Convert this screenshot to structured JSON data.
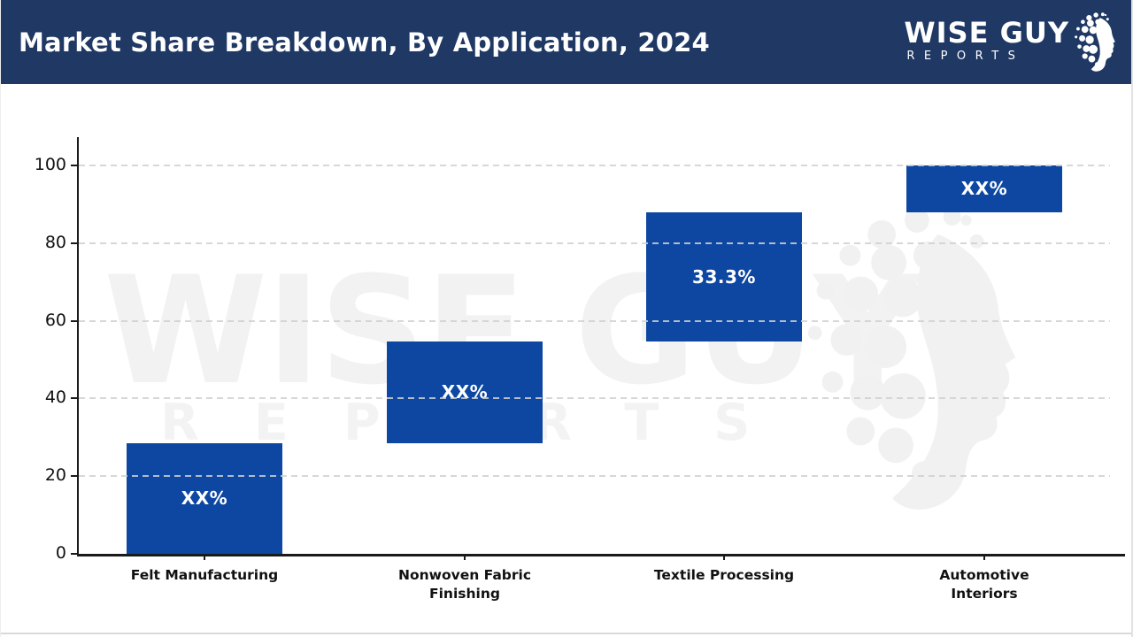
{
  "header": {
    "title": "Market Share Breakdown, By Application, 2024",
    "bg": "#1f3864",
    "logo": {
      "line1": "WISE GUY",
      "line2": "REPORTS"
    }
  },
  "watermark": {
    "line1": "WISE GUY",
    "line2": "REPORTS"
  },
  "chart_data": {
    "type": "bar",
    "subtype": "floating-waterfall",
    "title": "Market Share Breakdown, By Application, 2024",
    "categories": [
      "Felt Manufacturing",
      "Nonwoven Fabric\nFinishing",
      "Textile Processing",
      "Automotive\nInteriors"
    ],
    "series": [
      {
        "name": "Market Share %",
        "segments": [
          {
            "category": "Felt Manufacturing",
            "start": 0,
            "end": 28.5,
            "label": "XX%"
          },
          {
            "category": "Nonwoven Fabric Finishing",
            "start": 28.5,
            "end": 54.7,
            "label": "XX%"
          },
          {
            "category": "Textile Processing",
            "start": 54.7,
            "end": 88,
            "label": "33.3%"
          },
          {
            "category": "Automotive Interiors",
            "start": 88,
            "end": 100,
            "label": "XX%"
          }
        ]
      }
    ],
    "xlabel": "",
    "ylabel": "",
    "ylim": [
      0,
      100
    ],
    "yticks": [
      0,
      20,
      40,
      60,
      80,
      100
    ],
    "grid": {
      "horizontal": true,
      "style": "dashed",
      "color": "#d9d9d9"
    },
    "legend": "none",
    "bar_color": "#0d47a1",
    "bar_label_color": "#ffffff",
    "axis_color": "#1a1a1a"
  }
}
